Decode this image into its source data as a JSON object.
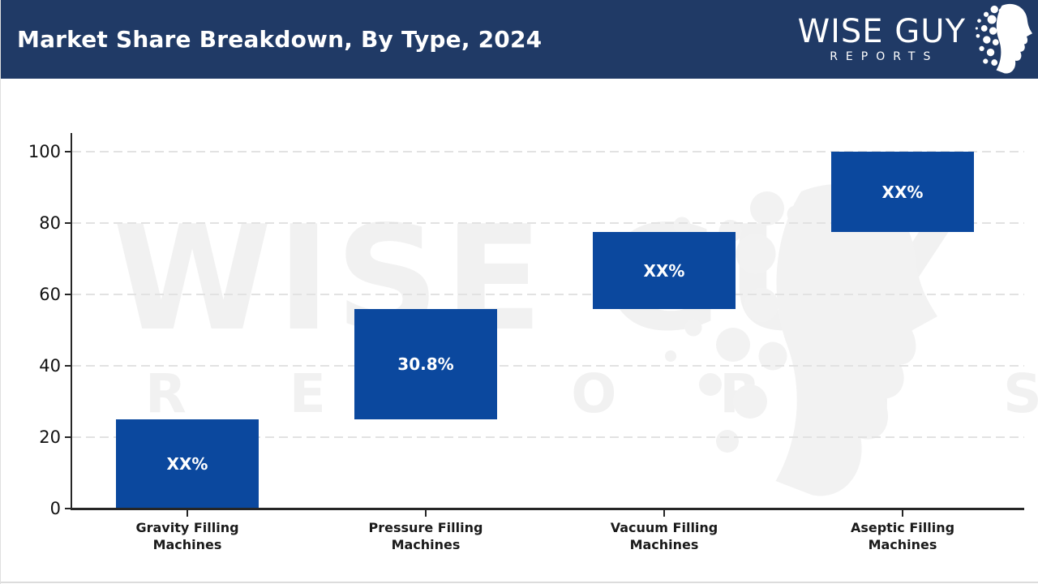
{
  "header": {
    "title": "Market Share Breakdown, By Type, 2024",
    "bg_color": "#203a66",
    "logo": {
      "line1": "WISE GUY",
      "line2": "REPORTS"
    }
  },
  "watermark": {
    "line1": "WISE GUY",
    "line2": "R E P O R T S"
  },
  "chart_data": {
    "type": "bar",
    "subtype": "floating-waterfall",
    "title": "Market Share Breakdown, By Type, 2024",
    "categories": [
      "Gravity Filling Machines",
      "Pressure Filling Machines",
      "Vacuum Filling Machines",
      "Aseptic Filling Machines"
    ],
    "category_lines": [
      [
        "Gravity Filling",
        "Machines"
      ],
      [
        "Pressure Filling",
        "Machines"
      ],
      [
        "Vacuum Filling",
        "Machines"
      ],
      [
        "Aseptic Filling",
        "Machines"
      ]
    ],
    "segments": [
      {
        "category": "Gravity Filling Machines",
        "start": 0,
        "end": 25,
        "label": "XX%"
      },
      {
        "category": "Pressure Filling Machines",
        "start": 25,
        "end": 55.8,
        "label": "30.8%"
      },
      {
        "category": "Vacuum Filling Machines",
        "start": 55.8,
        "end": 77.4,
        "label": "XX%"
      },
      {
        "category": "Aseptic Filling Machines",
        "start": 77.4,
        "end": 100,
        "label": "XX%"
      }
    ],
    "ylim": [
      0,
      100
    ],
    "yticks": [
      0,
      20,
      40,
      60,
      80,
      100
    ],
    "xlabel": "",
    "ylabel": "",
    "grid": "horizontal-dashed",
    "legend": "none",
    "bar_color": "#0B489E",
    "bar_label_color": "#FFFFFF",
    "axis_color": "#262626"
  }
}
